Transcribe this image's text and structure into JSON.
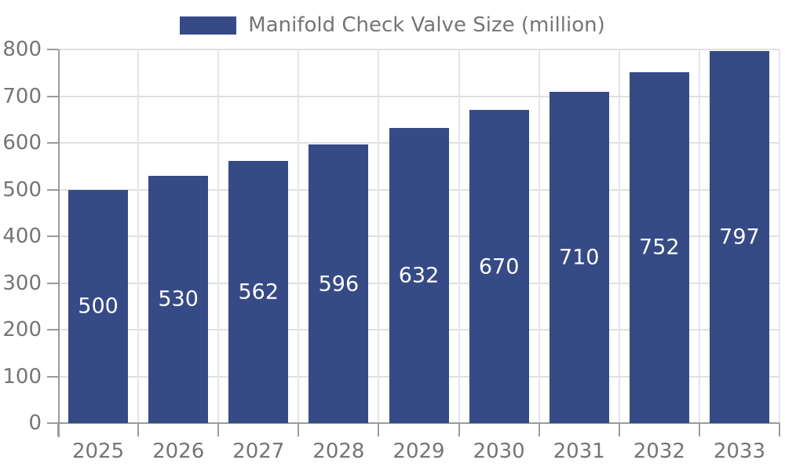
{
  "chart_data": {
    "type": "bar",
    "title": "",
    "series_name": "Manifold Check Valve Size (million)",
    "categories": [
      "2025",
      "2026",
      "2027",
      "2028",
      "2029",
      "2030",
      "2031",
      "2032",
      "2033"
    ],
    "values": [
      500,
      530,
      562,
      596,
      632,
      670,
      710,
      752,
      797
    ],
    "xlabel": "",
    "ylabel": "",
    "ylim": [
      0,
      800
    ],
    "yticks": [
      0,
      100,
      200,
      300,
      400,
      500,
      600,
      700,
      800
    ],
    "grid": true,
    "legend_position": "top-center",
    "bar_color": "#364a86",
    "value_label_color": "#ffffff",
    "tick_label_color": "#757575",
    "axis_color": "#9b9b9b",
    "gridline_color": "#e0e0e0"
  }
}
